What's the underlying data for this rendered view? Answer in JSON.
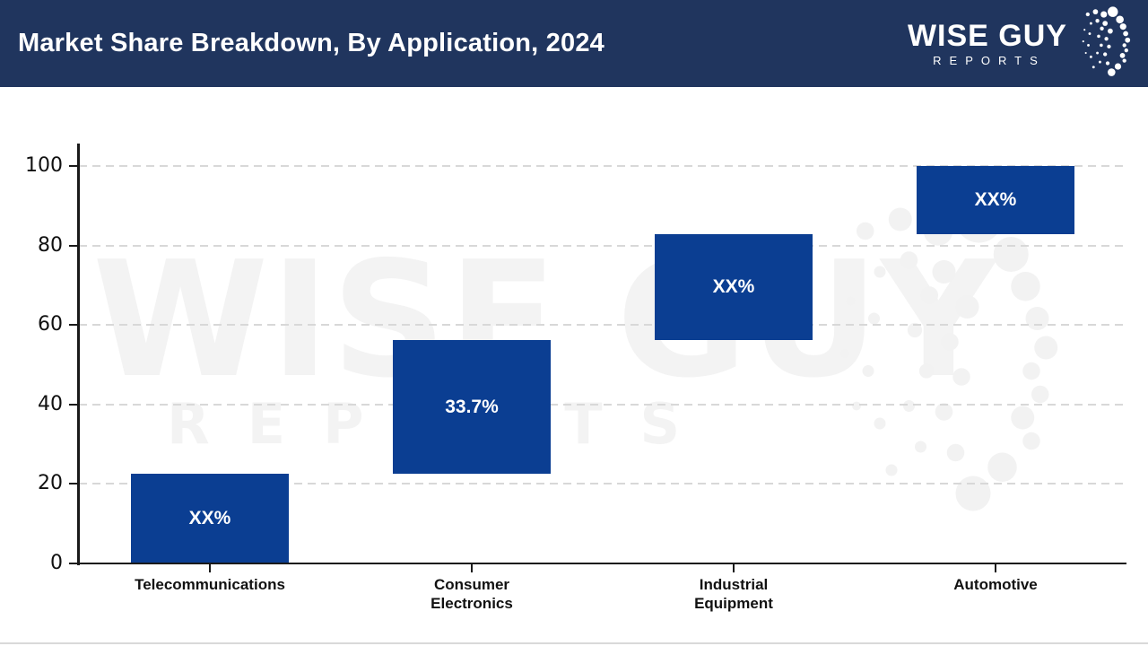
{
  "header": {
    "title": "Market Share Breakdown, By Application, 2024",
    "logo": {
      "line1": "WISE GUY",
      "line2": "REPORTS"
    }
  },
  "watermark": {
    "line1": "WISE GUY",
    "line2": "REPORTS"
  },
  "chart_data": {
    "type": "bar",
    "subtype": "waterfall-floating-bars",
    "title": "Market Share Breakdown, By Application, 2024",
    "categories": [
      "Telecommunications",
      "Consumer\nElectronics",
      "Industrial\nEquipment",
      "Automotive"
    ],
    "bars": [
      {
        "category": "Telecommunications",
        "start": 0,
        "end": 22.4,
        "label": "XX%"
      },
      {
        "category": "Consumer Electronics",
        "start": 22.4,
        "end": 56.1,
        "label": "33.7%"
      },
      {
        "category": "Industrial Equipment",
        "start": 56.1,
        "end": 82.8,
        "label": "XX%"
      },
      {
        "category": "Automotive",
        "start": 82.8,
        "end": 100,
        "label": "XX%"
      }
    ],
    "xlabel": "",
    "ylabel": "",
    "ylim": [
      0,
      100
    ],
    "yticks": [
      0,
      20,
      40,
      60,
      80,
      100
    ],
    "grid": "horizontal-dashed",
    "legend": "none",
    "bar_color": "#0b3e92",
    "bar_label_color": "#ffffff"
  },
  "colors": {
    "header_bg": "#20355e",
    "bar": "#0b3e92",
    "gridline": "#d8d8d8",
    "axis": "#1a1a1a",
    "watermark": "#f3f3f3",
    "bottom_line": "#d9d9d9"
  }
}
